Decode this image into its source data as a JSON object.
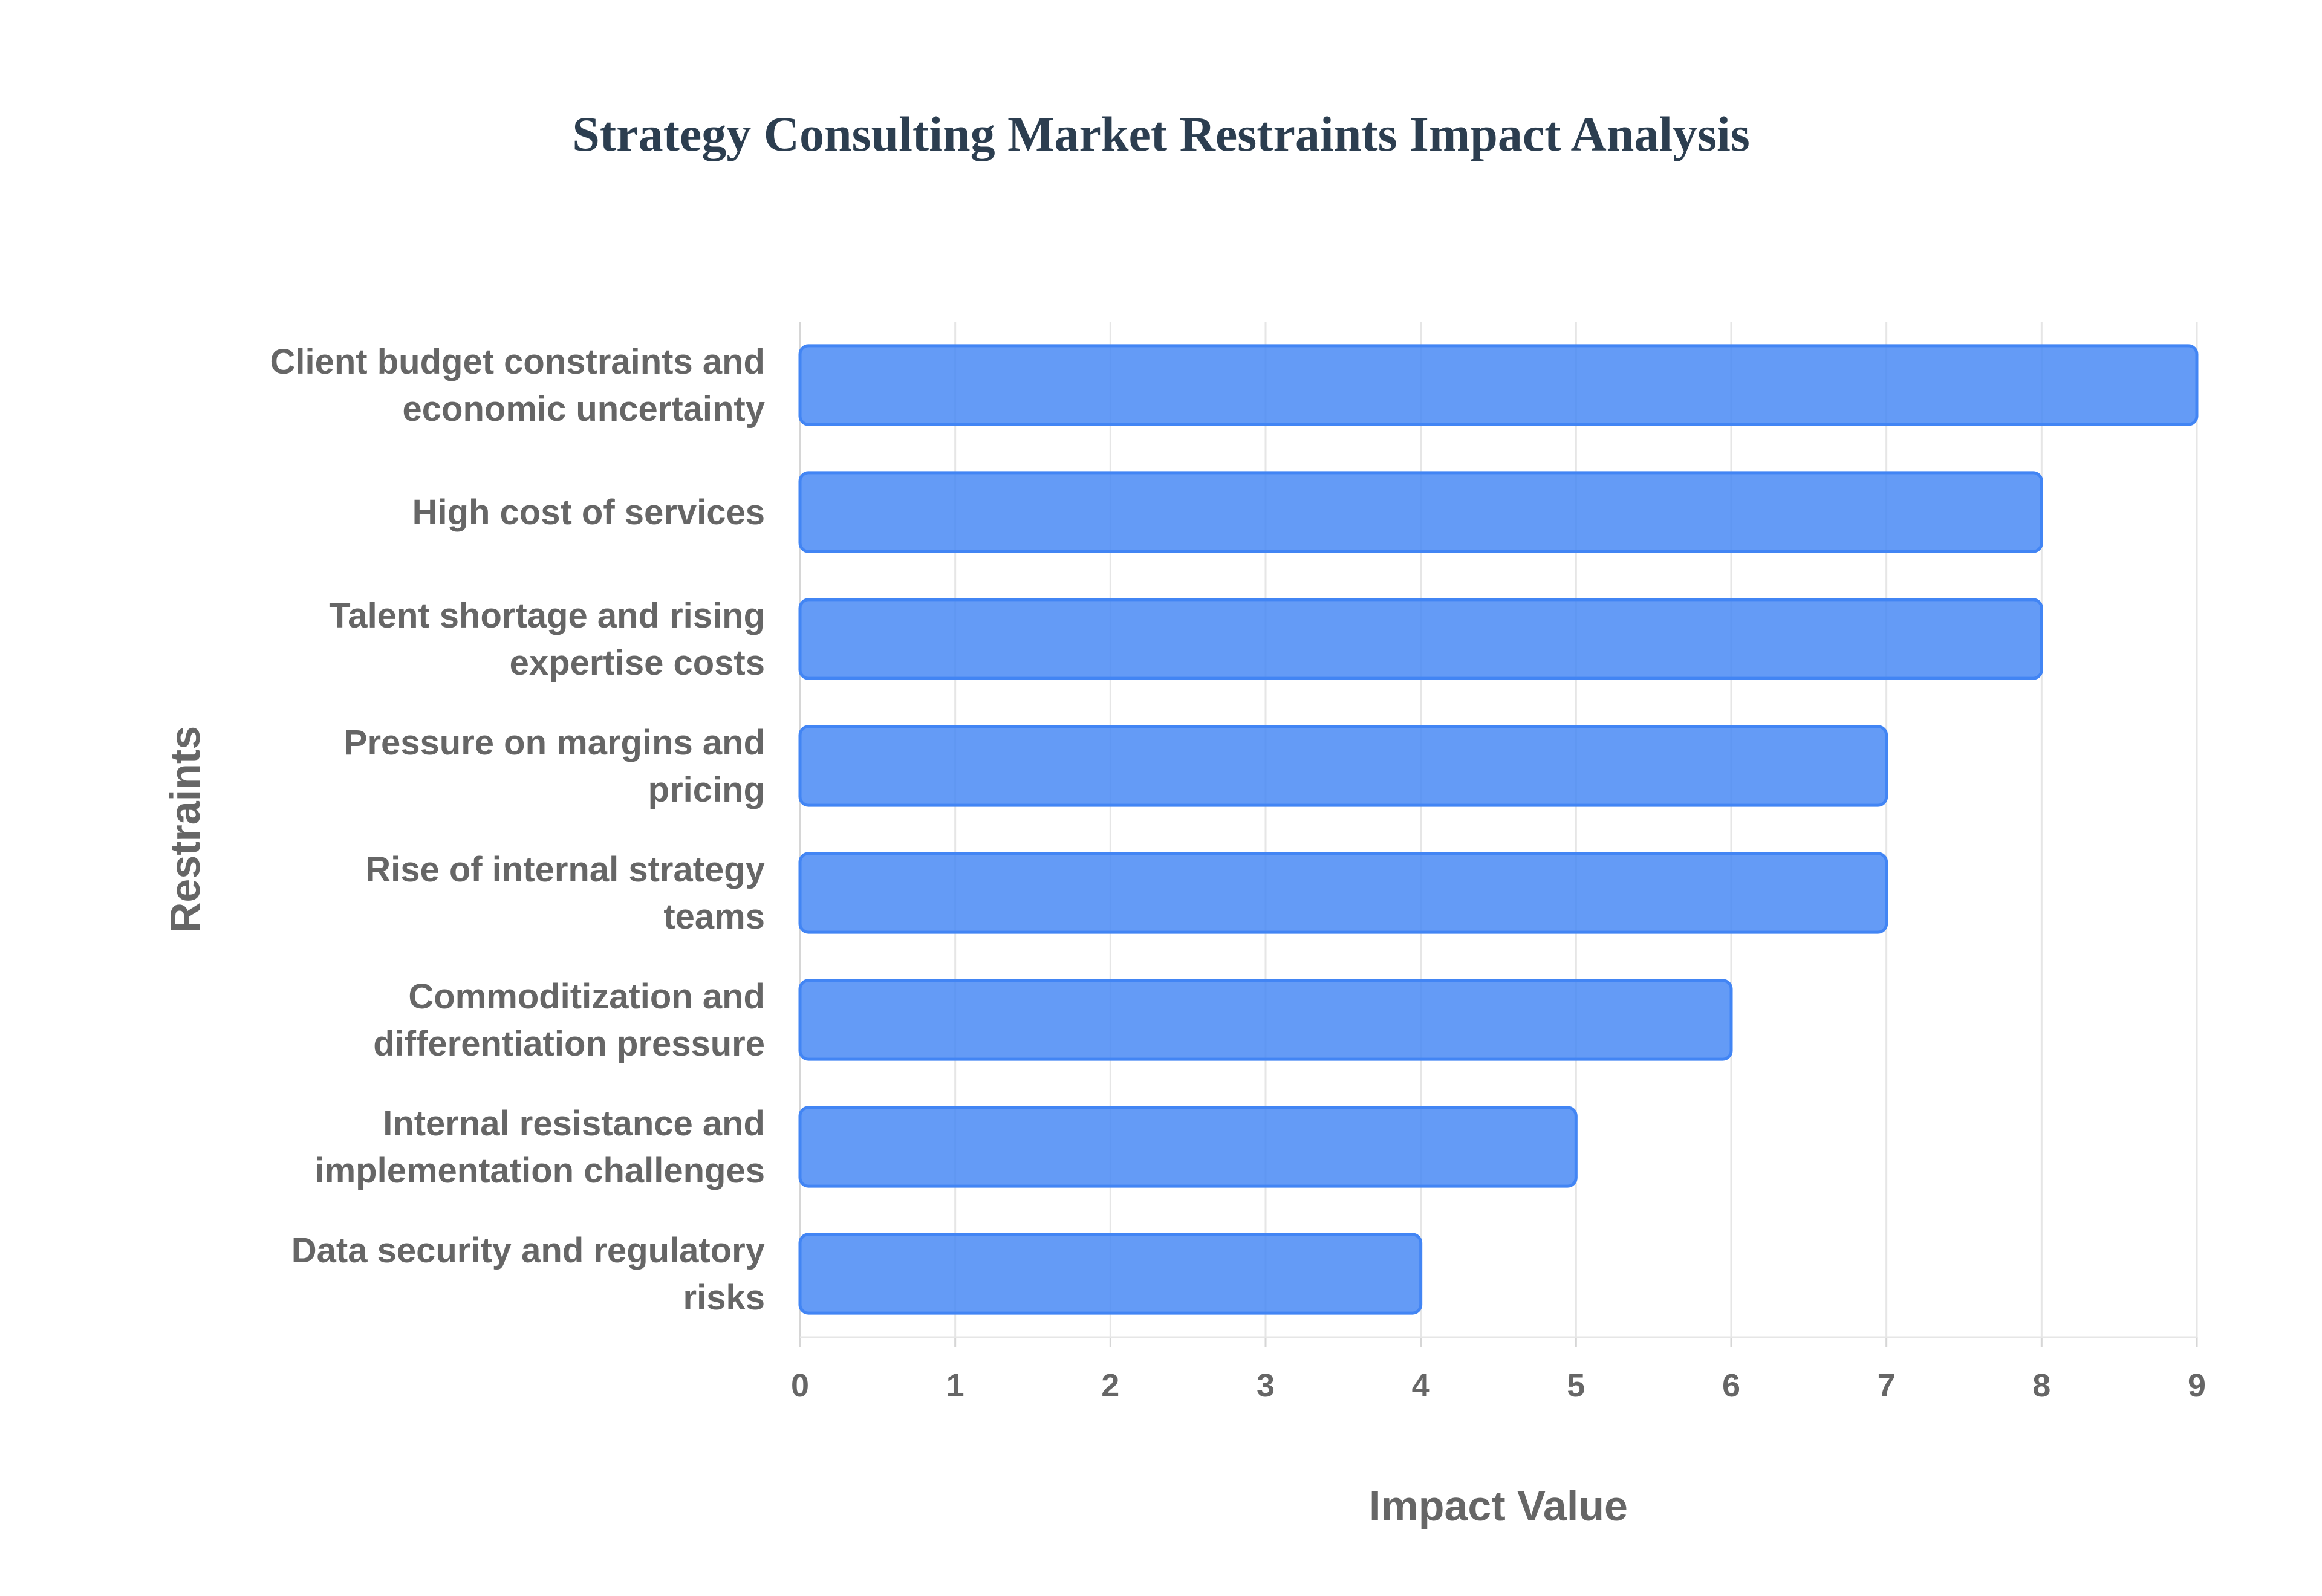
{
  "chart_data": {
    "type": "bar",
    "orientation": "horizontal",
    "title": "Strategy Consulting Market Restraints Impact Analysis",
    "xlabel": "Impact Value",
    "ylabel": "Restraints",
    "xlim": [
      0,
      9
    ],
    "ticks": [
      "0",
      "1",
      "2",
      "3",
      "4",
      "5",
      "6",
      "7",
      "8",
      "9"
    ],
    "grid": true,
    "categories": [
      [
        "Client budget constraints and",
        "economic uncertainty"
      ],
      [
        "High cost of services"
      ],
      [
        "Talent shortage and rising",
        "expertise costs"
      ],
      [
        "Pressure on margins and",
        "pricing"
      ],
      [
        "Rise of internal strategy",
        "teams"
      ],
      [
        "Commoditization and",
        "differentiation pressure"
      ],
      [
        "Internal resistance and",
        "implementation challenges"
      ],
      [
        "Data security and regulatory",
        "risks"
      ]
    ],
    "values": [
      9,
      8,
      8,
      7,
      7,
      6,
      5,
      4
    ],
    "bar_color": "#4285f4"
  }
}
